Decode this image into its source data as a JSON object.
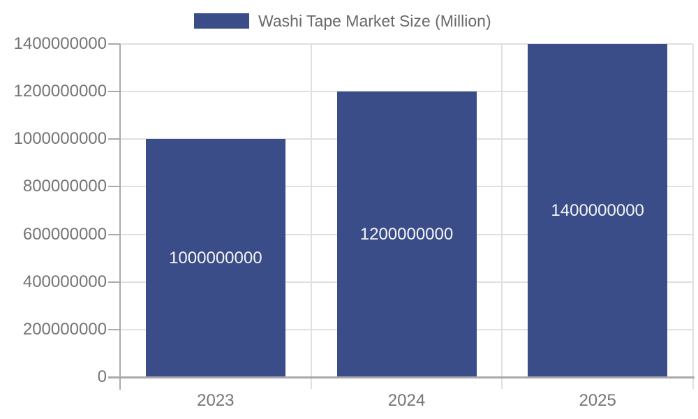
{
  "chart_data": {
    "type": "bar",
    "title": "Washi Tape Market Size (Million)",
    "categories": [
      "2023",
      "2024",
      "2025"
    ],
    "values": [
      1000000000,
      1200000000,
      1400000000
    ],
    "bar_value_labels": [
      "1000000000",
      "1200000000",
      "1400000000"
    ],
    "ytick_labels": [
      "0",
      "200000000",
      "400000000",
      "600000000",
      "800000000",
      "1000000000",
      "1200000000",
      "1400000000"
    ],
    "yticks": [
      0,
      200000000,
      400000000,
      600000000,
      800000000,
      1000000000,
      1200000000,
      1400000000
    ],
    "ylim": [
      0,
      1400000000
    ],
    "grid": true,
    "legend_position": "top",
    "xlabel": "",
    "ylabel": "",
    "colors": {
      "bar": "#3a4d89",
      "grid": "#e0e0e0",
      "axis": "#a9a9a9",
      "tick_label": "#757575",
      "legend_text": "#696969",
      "bar_label": "#f5f5f5",
      "background": "#ffffff"
    }
  }
}
